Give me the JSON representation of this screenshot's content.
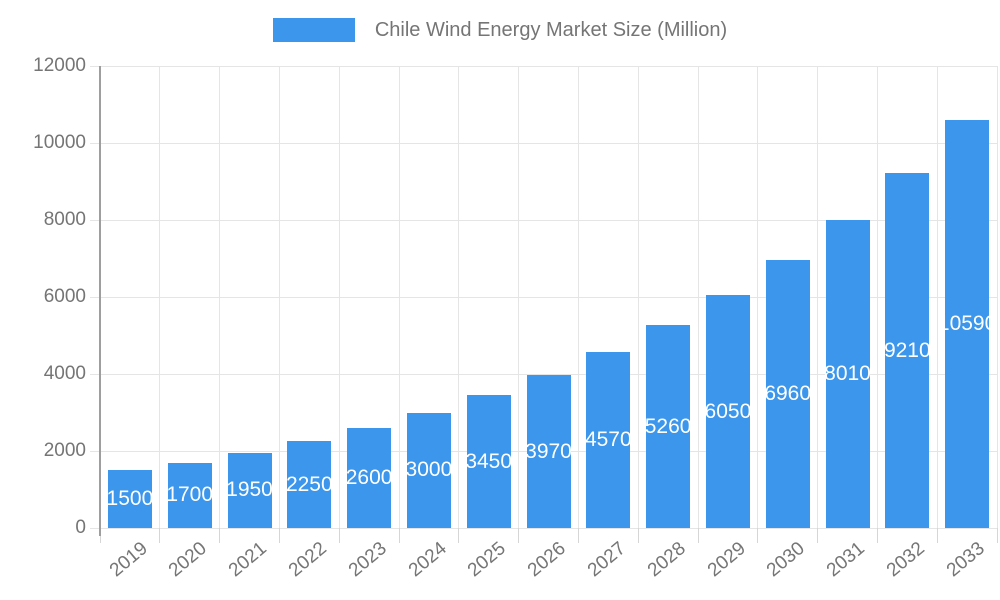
{
  "chart_data": {
    "type": "bar",
    "title": "Chile Wind Energy Market Size (Million)",
    "categories": [
      "2019",
      "2020",
      "2021",
      "2022",
      "2023",
      "2024",
      "2025",
      "2026",
      "2027",
      "2028",
      "2029",
      "2030",
      "2031",
      "2032",
      "2033"
    ],
    "values": [
      1500,
      1700,
      1950,
      2250,
      2600,
      3000,
      3450,
      3970,
      4570,
      5260,
      6050,
      6960,
      8010,
      9210,
      10590
    ],
    "xlabel": "",
    "ylabel": "",
    "ylim": [
      0,
      12000
    ],
    "ytick_step": 2000,
    "ytick_labels": [
      "0",
      "2000",
      "4000",
      "6000",
      "8000",
      "10000",
      "12000"
    ],
    "grid": true,
    "legend_position": "top",
    "colors": {
      "bar": "#3b96ec",
      "bar_value_text": "#ffffff",
      "axis_text": "#757575",
      "gridline": "#e5e5e5",
      "axis_line": "#9e9e9e",
      "tick_mark": "#d6d6d6",
      "background": "#ffffff"
    }
  }
}
